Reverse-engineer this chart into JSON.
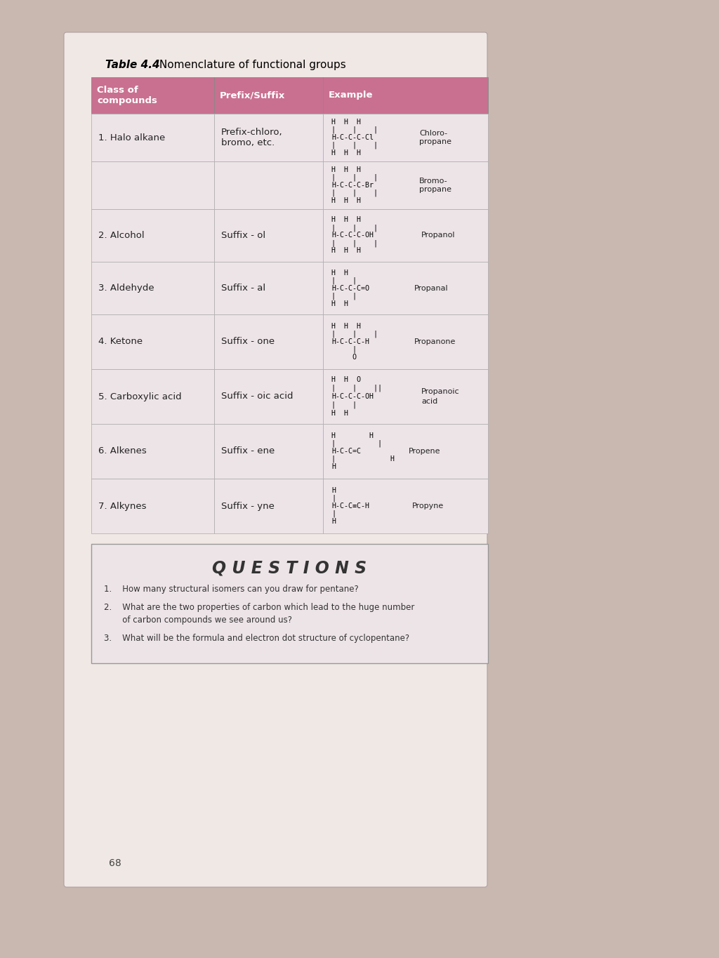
{
  "title_bold": "Table 4.4",
  "title_rest": " Nomenclature of functional groups",
  "header": [
    "Class of\ncompounds",
    "Prefix/Suffix",
    "Example"
  ],
  "header_bg": "#c97090",
  "row_bg": "#ede4e8",
  "questions_title": "Q U E S T I O N S",
  "questions": [
    "1.    How many structural isomers can you draw for pentane?",
    "2.    What are the two properties of carbon which lead to the huge number\n       of carbon compounds we see around us?",
    "3.    What will be the formula and electron dot structure of cyclopentane?"
  ],
  "page_num": "68",
  "bg_color": "#c8b8b0",
  "paper_color": "#f0e8e4"
}
